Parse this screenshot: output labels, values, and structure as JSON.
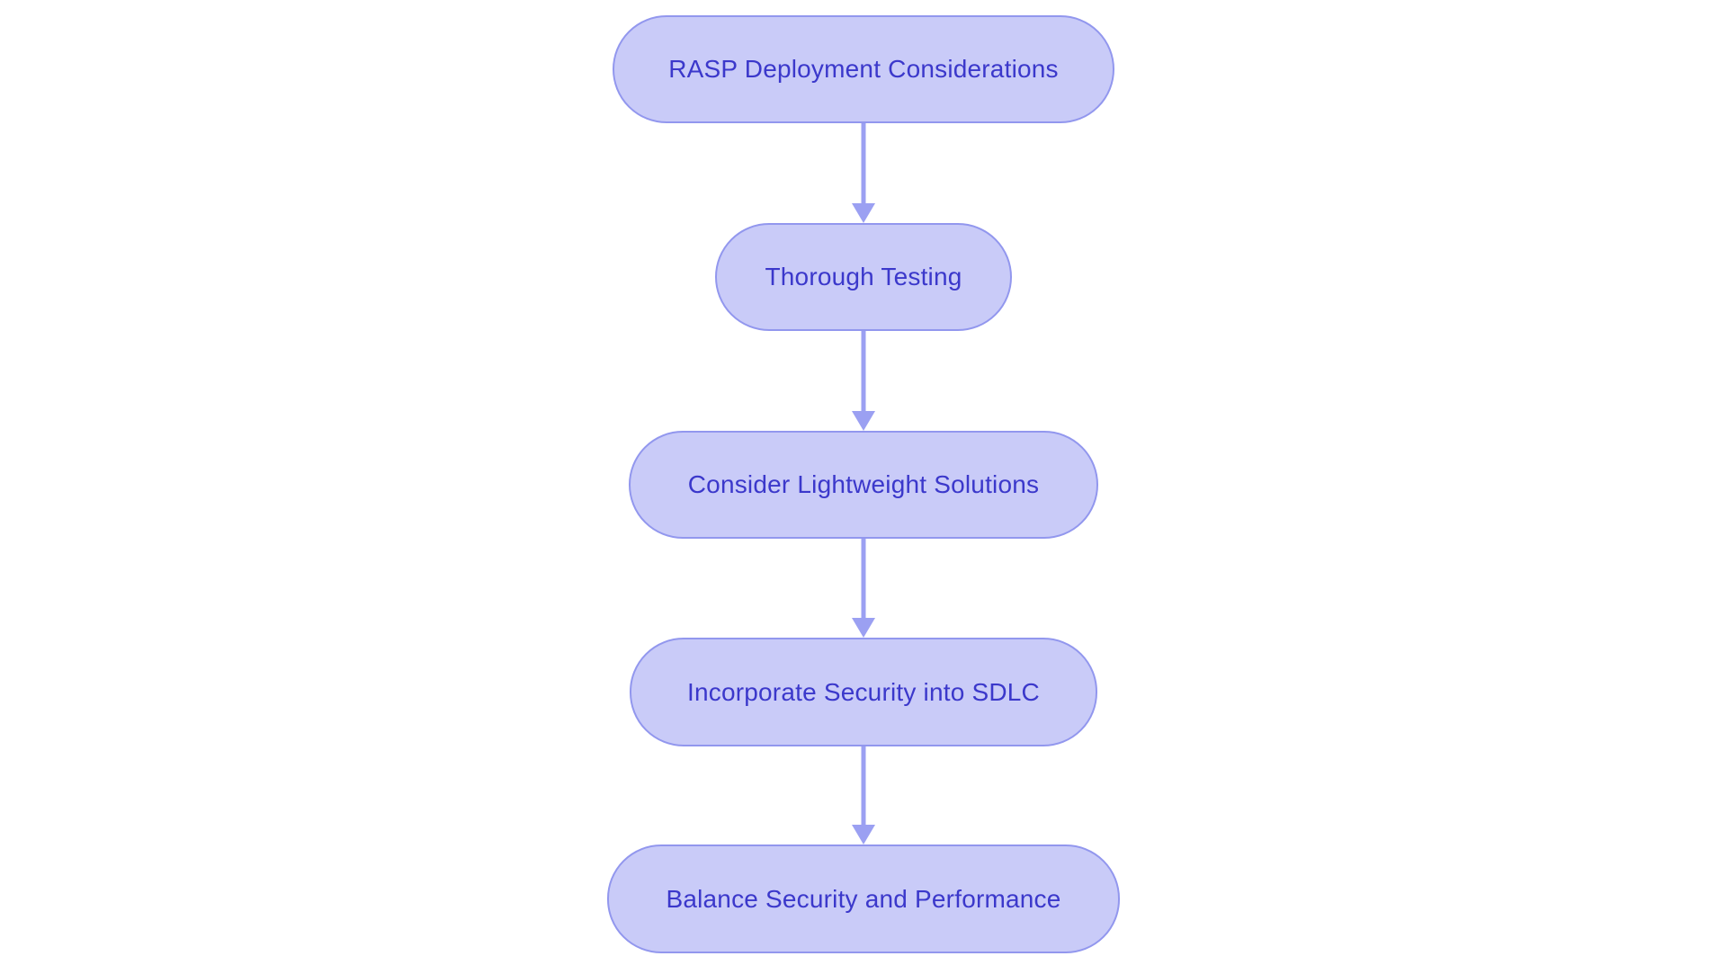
{
  "diagram": {
    "type": "flowchart",
    "direction": "top-down",
    "nodes": [
      {
        "id": 0,
        "label": "RASP Deployment Considerations"
      },
      {
        "id": 1,
        "label": "Thorough Testing"
      },
      {
        "id": 2,
        "label": "Consider Lightweight Solutions"
      },
      {
        "id": 3,
        "label": "Incorporate Security into SDLC"
      },
      {
        "id": 4,
        "label": "Balance Security and Performance"
      }
    ],
    "edges": [
      {
        "from": 0,
        "to": 1
      },
      {
        "from": 1,
        "to": 2
      },
      {
        "from": 2,
        "to": 3
      },
      {
        "from": 3,
        "to": 4
      }
    ],
    "colors": {
      "node_fill": "#c9cbf8",
      "node_border": "#9297ee",
      "node_text": "#3b38cb",
      "arrow": "#9ba0f2",
      "background": "#ffffff"
    }
  }
}
